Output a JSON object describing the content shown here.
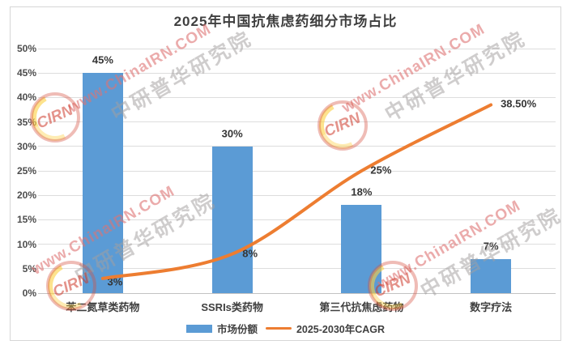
{
  "title": "2025年中国抗焦虑药细分市场占比",
  "legend": {
    "items": [
      {
        "label": "市场份额",
        "marker": "bar-swatch",
        "color": "#5B9BD5"
      },
      {
        "label": "2025-2030年CAGR",
        "marker": "line-swatch",
        "color": "#ED7D31"
      }
    ]
  },
  "watermark": {
    "url_text": "www.ChinaIRN.COM",
    "brand_text": "中研普华研究院",
    "stamp_text": "CIRN"
  },
  "chart_data": {
    "type": "bar",
    "combo": "bar+line",
    "title": "2025年中国抗焦虑药细分市场占比",
    "categories": [
      "苯二氮草类药物",
      "SSRIs类药物",
      "第三代抗焦虑药物",
      "数字疗法"
    ],
    "series": [
      {
        "name": "市场份额",
        "type": "bar",
        "color": "#5B9BD5",
        "values": [
          45,
          30,
          18,
          7
        ],
        "data_labels": [
          "45%",
          "30%",
          "18%",
          "7%"
        ]
      },
      {
        "name": "2025-2030年CAGR",
        "type": "line",
        "color": "#ED7D31",
        "values": [
          3,
          8,
          25,
          38.5
        ],
        "data_labels": [
          "3%",
          "8%",
          "25%",
          "38.50%"
        ]
      }
    ],
    "y_axis": {
      "min": 0,
      "max": 50,
      "step": 5,
      "tick_labels": [
        "0%",
        "5%",
        "10%",
        "15%",
        "20%",
        "25%",
        "30%",
        "35%",
        "40%",
        "45%",
        "50%"
      ]
    },
    "grid": true,
    "legend_position": "bottom"
  }
}
